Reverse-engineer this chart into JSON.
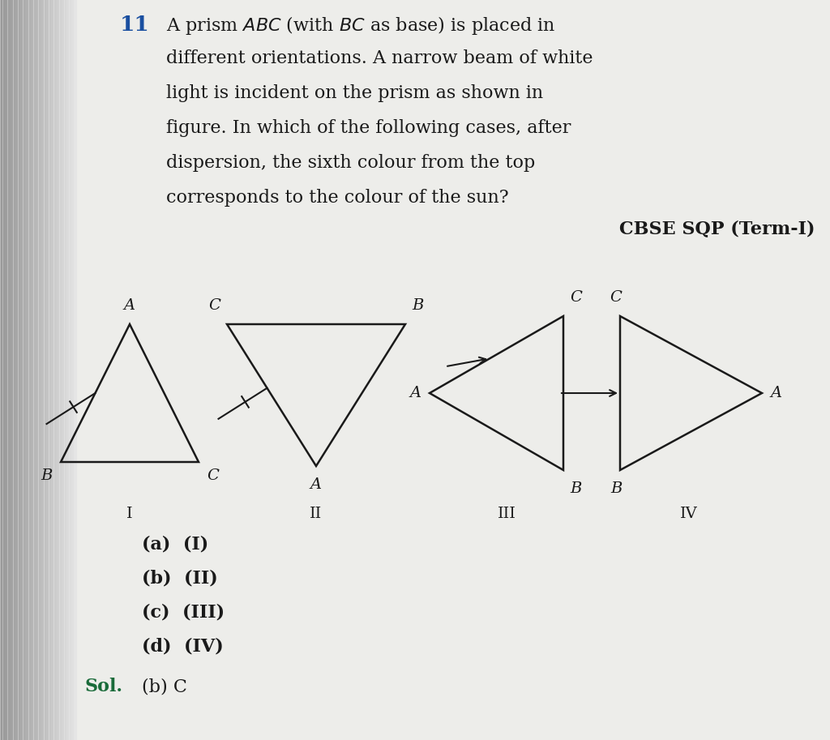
{
  "bg_color": "#e8e8e8",
  "page_color": "#f0eeea",
  "spine_color": "#888888",
  "text_color": "#1a1a1a",
  "num_color": "#1a4fa0",
  "prism_color": "#1a1a1a",
  "sol_color": "#1a6b3a",
  "question_lines": [
    "A prism $ABC$ (with $BC$ as base) is placed in",
    "different orientations. A narrow beam of white",
    "light is incident on the prism as shown in",
    "figure. In which of the following cases, after",
    "dispersion, the sixth colour from the top",
    "corresponds to the colour of the sun?"
  ],
  "cbse_text": "CBSE SQP (Term-I)",
  "options": [
    "(a)  (I)",
    "(b)  (II)",
    "(c)  (III)",
    "(d)  (IV)"
  ],
  "sol_label": "Sol.",
  "sol_ans": "(b) C",
  "label_fontsize": 14,
  "text_fontsize": 16,
  "num_fontsize": 18
}
